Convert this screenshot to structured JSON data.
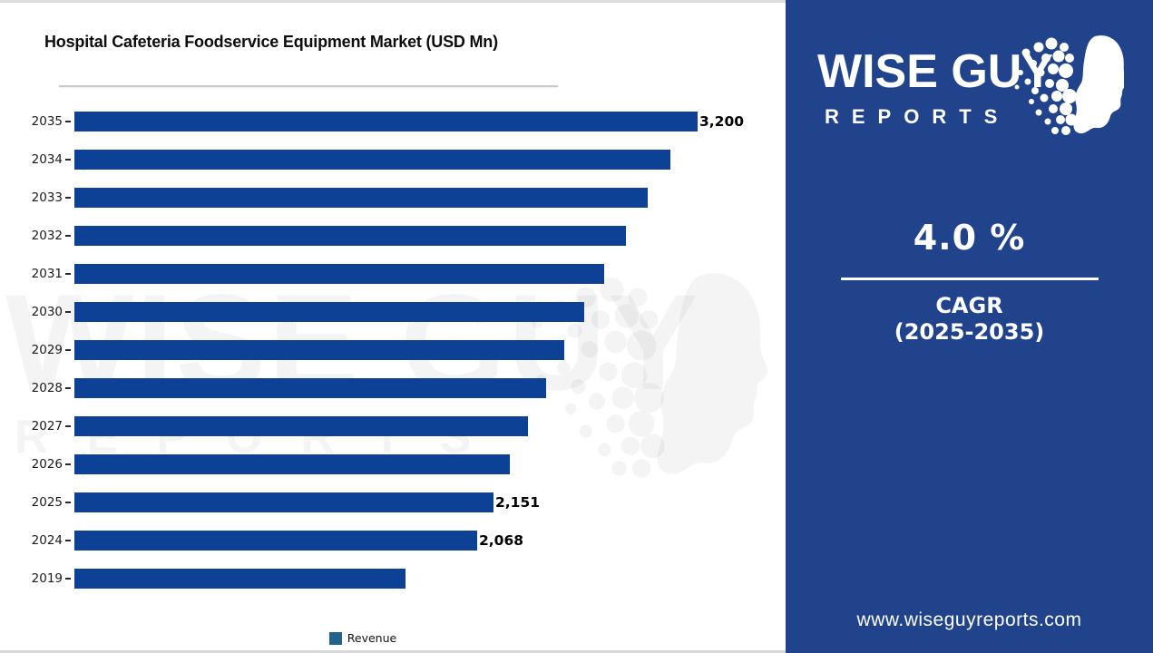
{
  "title": "Hospital Cafeteria Foodservice Equipment Market (USD Mn)",
  "chart_data": {
    "type": "bar",
    "orientation": "horizontal",
    "title": "Hospital Cafeteria Foodservice Equipment Market (USD Mn)",
    "xlabel": "",
    "ylabel": "",
    "categories": [
      "2019",
      "2024",
      "2025",
      "2026",
      "2027",
      "2028",
      "2029",
      "2030",
      "2031",
      "2032",
      "2033",
      "2034",
      "2035"
    ],
    "values": [
      1700,
      2068,
      2151,
      2237,
      2327,
      2420,
      2517,
      2617,
      2722,
      2831,
      2944,
      3062,
      3200
    ],
    "data_labels": {
      "2024": "2,068",
      "2025": "2,151",
      "2035": "3,200"
    },
    "xlim": [
      0,
      3200
    ],
    "grid": false,
    "bar_order_top_to_bottom": [
      "2035",
      "2034",
      "2033",
      "2032",
      "2031",
      "2030",
      "2029",
      "2028",
      "2027",
      "2026",
      "2025",
      "2024",
      "2019"
    ],
    "legend": [
      "Revenue"
    ],
    "legend_position": "bottom-center",
    "bar_color": "#0c4195",
    "legend_color": "#1f628c"
  },
  "sidebar": {
    "background": "#20438c",
    "logo": {
      "line1": "WISE GUY",
      "line2": "REPORTS"
    },
    "cagr_value": "4.0 %",
    "cagr_line1": "CAGR",
    "cagr_line2": "(2025-2035)",
    "website": "www.wiseguyreports.com"
  },
  "watermark": {
    "line1": "WISE GUY",
    "line2": "REPORTS"
  }
}
